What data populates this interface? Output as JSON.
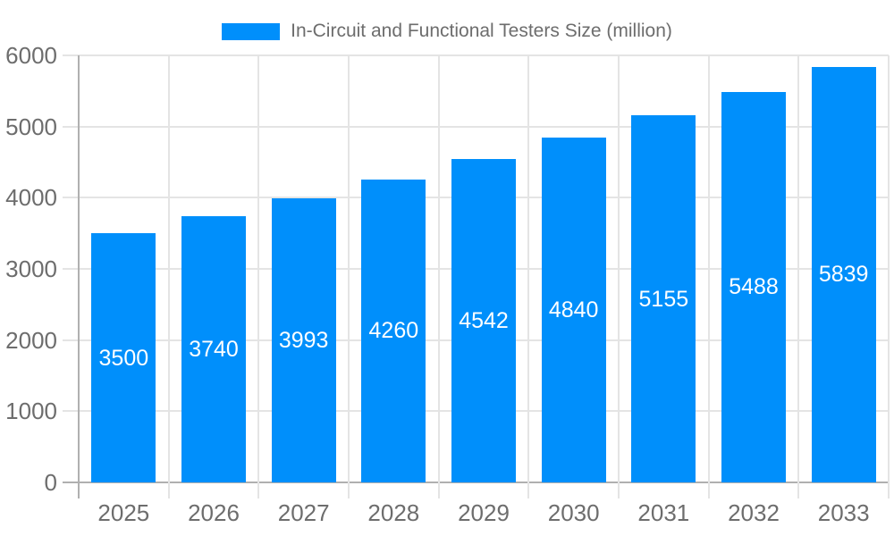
{
  "chart_data": {
    "type": "bar",
    "title": "In-Circuit and Functional Testers Size (million)",
    "legend": {
      "position": "top",
      "label": "In-Circuit and Functional Testers Size (million)"
    },
    "categories": [
      "2025",
      "2026",
      "2027",
      "2028",
      "2029",
      "2030",
      "2031",
      "2032",
      "2033"
    ],
    "values": [
      3500,
      3740,
      3993,
      4260,
      4542,
      4840,
      5155,
      5488,
      5839
    ],
    "y_tick_labels": [
      "0",
      "1000",
      "2000",
      "3000",
      "4000",
      "5000",
      "6000"
    ],
    "ylim": [
      0,
      6000
    ],
    "ytick_step": 1000,
    "xlabel": "",
    "ylabel": "",
    "grid": true,
    "colors": {
      "bar": "#008FFB",
      "bar_value_label": "#ffffff",
      "axis_text": "#6d6d6d",
      "gridline": "#e4e4e4",
      "axis_line": "#b0b0b0",
      "background": "#ffffff"
    }
  }
}
